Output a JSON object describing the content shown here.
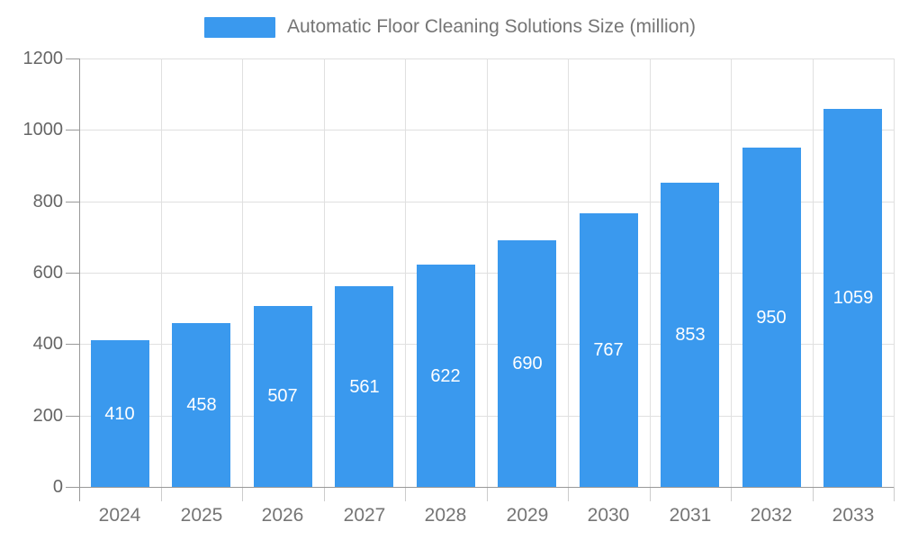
{
  "chart_data": {
    "type": "bar",
    "title": "Automatic Floor Cleaning Solutions Size (million)",
    "legend": {
      "position": "top-center",
      "entries": [
        "Automatic Floor Cleaning Solutions Size (million)"
      ]
    },
    "categories": [
      "2024",
      "2025",
      "2026",
      "2027",
      "2028",
      "2029",
      "2030",
      "2031",
      "2032",
      "2033"
    ],
    "series": [
      {
        "name": "Automatic Floor Cleaning Solutions Size (million)",
        "values": [
          410,
          458,
          507,
          561,
          622,
          690,
          767,
          853,
          950,
          1059
        ]
      }
    ],
    "value_labels_shown": true,
    "xlabel": "",
    "ylabel": "",
    "ylim": [
      0,
      1200
    ],
    "ytick_step": 200,
    "ytick_labels": [
      "0",
      "200",
      "400",
      "600",
      "800",
      "1000",
      "1200"
    ],
    "grid": true
  },
  "colors": {
    "bar": "#3A99EE",
    "bar_value_label": "#ffffff",
    "gridline": "#E0E0E0",
    "axis_line": "#999999",
    "tick_mark": "#cccccc",
    "y_tick_text": "#666666",
    "x_tick_text": "#757575",
    "legend_text": "#757575",
    "background": "#ffffff"
  }
}
